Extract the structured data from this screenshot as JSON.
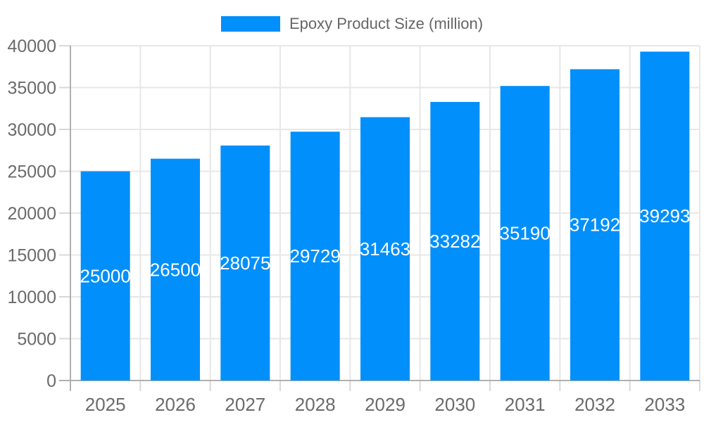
{
  "legend": {
    "label": "Epoxy Product Size (million)"
  },
  "colors": {
    "bar": "#008FFB",
    "axis_text": "#6b6b6b",
    "value_label_text": "#ffffff",
    "gridline": "#e7e7e7",
    "axis_line": "#b0b0b0",
    "minor_tick": "#d8d8d8",
    "background": "#ffffff"
  },
  "chart_data": {
    "type": "bar",
    "title": "Epoxy Product Size (million)",
    "categories": [
      "2025",
      "2026",
      "2027",
      "2028",
      "2029",
      "2030",
      "2031",
      "2032",
      "2033"
    ],
    "values": [
      25000,
      26500,
      28075,
      29729,
      31463,
      33282,
      35190,
      37192,
      39293
    ],
    "series_name": "Epoxy Product Size (million)",
    "xlabel": "",
    "ylabel": "",
    "ylim": [
      0,
      40000
    ],
    "ytick_step": 5000,
    "ytick_labels": [
      "0",
      "5000",
      "10000",
      "15000",
      "20000",
      "25000",
      "30000",
      "35000",
      "40000"
    ],
    "grid": true,
    "legend_position": "top",
    "value_labels": "white, centered inside bars"
  }
}
